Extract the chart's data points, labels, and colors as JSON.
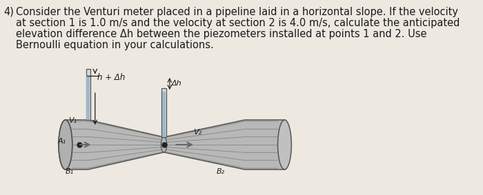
{
  "bg_color": "#ede9e1",
  "text_color": "#1a1a1a",
  "title_num": "4)",
  "line1": "Consider the Venturi meter placed in a pipeline laid in a horizontal slope. If the velocity",
  "line2": "at section 1 is 1.0 m/s and the velocity at section 2 is 4.0 m/s, calculate the anticipated",
  "line3": "elevation difference Δh between the piezometers installed at points 1 and 2. Use",
  "line4": "Bernoulli equation in your calculations.",
  "font_size": 10.5,
  "diagram": {
    "pipe_fill": "#b8b8b8",
    "pipe_edge": "#555555",
    "pipe_line_color": "#888888",
    "ellipse_fill": "#a0a0a0",
    "throat_fill": "#c0c0c0",
    "tube_fill": "#d8d8d8",
    "tube_edge": "#555555",
    "arrow_color": "#666666",
    "label_color": "#222222"
  },
  "labels": {
    "h_plus_dh": "h + Δh",
    "dh": "Δh",
    "V1": "V₁",
    "V2": "V₂",
    "A1": "A₁",
    "B1": "B₁",
    "B2": "B₂"
  }
}
